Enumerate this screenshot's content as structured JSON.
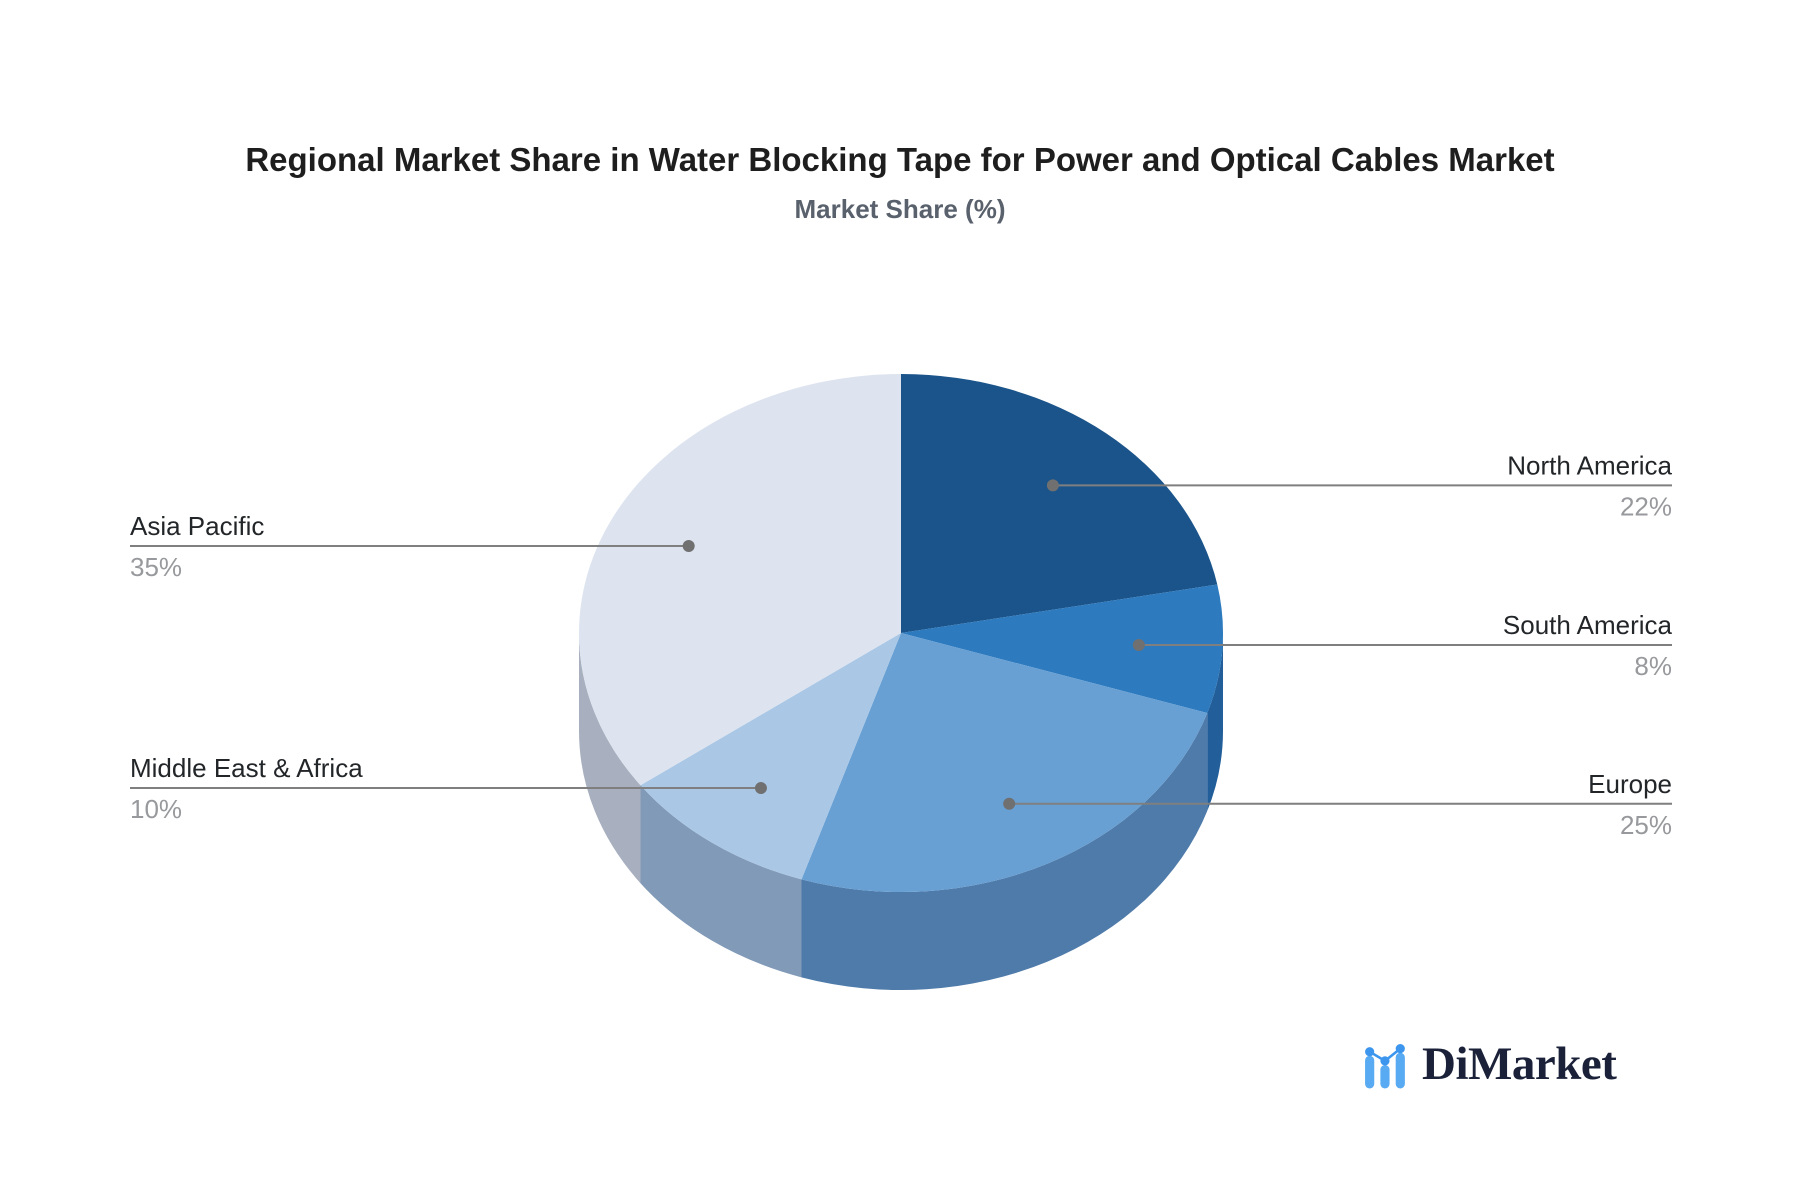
{
  "title": "Regional Market Share in Water Blocking Tape for Power and Optical Cables Market",
  "subtitle": "Market Share (%)",
  "brand": {
    "name": "DiMarket",
    "icon": "bar-chart-logo-icon",
    "text_color": "#1a2138",
    "bar_color": "#58aaf2",
    "dot_color": "#3d96ee"
  },
  "chart_data": {
    "type": "pie",
    "title": "Regional Market Share in Water Blocking Tape for Power and Optical Cables Market",
    "subtitle": "Market Share (%)",
    "unit": "%",
    "effect": "3d",
    "start_angle_deg": 0,
    "direction": "clockwise",
    "legend": "none",
    "slices": [
      {
        "label": "North America",
        "value": 22,
        "value_label": "22%",
        "color": "#1a548a"
      },
      {
        "label": "South America",
        "value": 8,
        "value_label": "8%",
        "color": "#2d7abf"
      },
      {
        "label": "Europe",
        "value": 25,
        "value_label": "25%",
        "color": "#68a0d4"
      },
      {
        "label": "Middle East & Africa",
        "value": 10,
        "value_label": "10%",
        "color": "#aac8e6"
      },
      {
        "label": "Asia Pacific",
        "value": 35,
        "value_label": "35%",
        "color": "#dde4ef"
      }
    ],
    "label_color": "#232629",
    "value_color": "#97999c",
    "leader_line_color": "#7f7f7f",
    "leader_dot_color": "#707070"
  }
}
